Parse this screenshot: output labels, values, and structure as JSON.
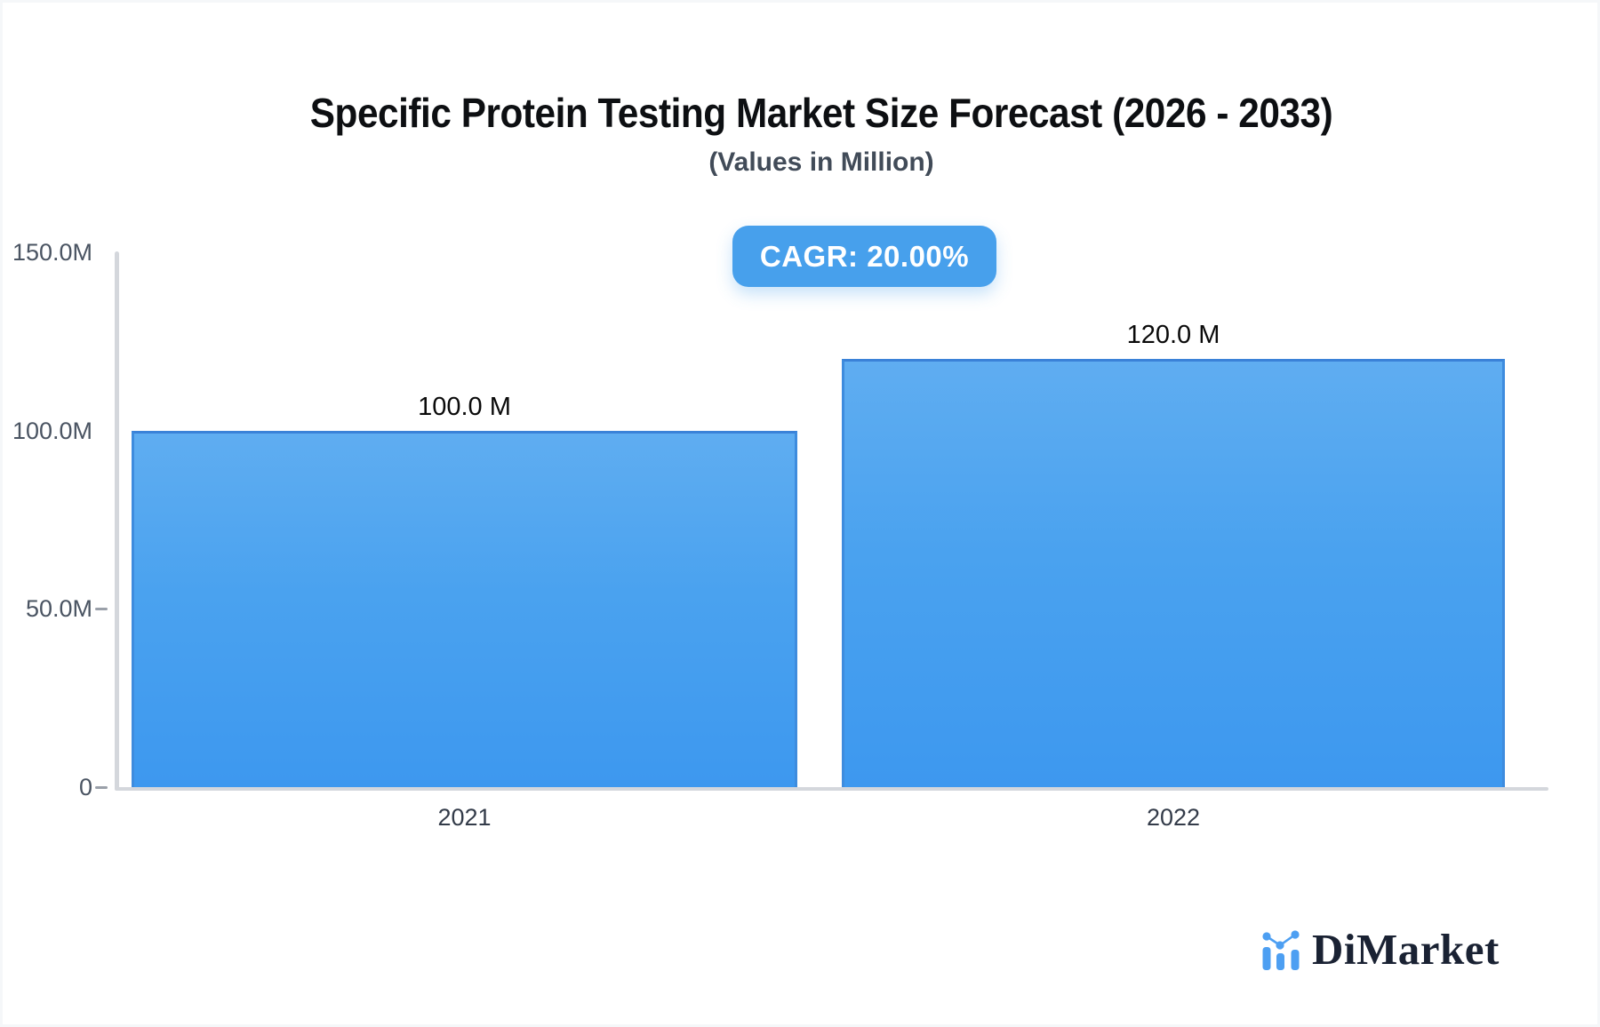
{
  "header": {
    "title": "Specific Protein Testing Market Size Forecast (2026 - 2033)",
    "subtitle": "(Values in Million)",
    "cagr_label": "CAGR: 20.00%"
  },
  "chart_data": {
    "type": "bar",
    "title": "Specific Protein Testing Market Size Forecast (2026 - 2033)",
    "subtitle": "(Values in Million)",
    "categories": [
      "2021",
      "2022"
    ],
    "values": [
      100.0,
      120.0
    ],
    "value_labels": [
      "100.0 M",
      "120.0 M"
    ],
    "unit": "Million",
    "ylim": [
      0,
      150
    ],
    "yticks": [
      {
        "label": "150.0M",
        "value": 150,
        "dash": false
      },
      {
        "label": "100.0M",
        "value": 100,
        "dash": false
      },
      {
        "label": "50.0M",
        "value": 50,
        "dash": true
      },
      {
        "label": "0",
        "value": 0,
        "dash": true
      }
    ],
    "legend": "none",
    "grid": "off",
    "cagr_percent": "20.00%"
  },
  "colors": {
    "badge_blue": "#47a0ec",
    "bar_gradient_top": "#5fadf1",
    "bar_gradient_bottom": "#3d98ef",
    "bar_border": "#3a82d8",
    "axis_gray": "#d4d7dc",
    "tick_text": "#4a5462",
    "brand_navy": "#1a2233",
    "brand_blue": "#4d9ff2"
  },
  "watermark": {
    "brand": "DiMarket"
  }
}
